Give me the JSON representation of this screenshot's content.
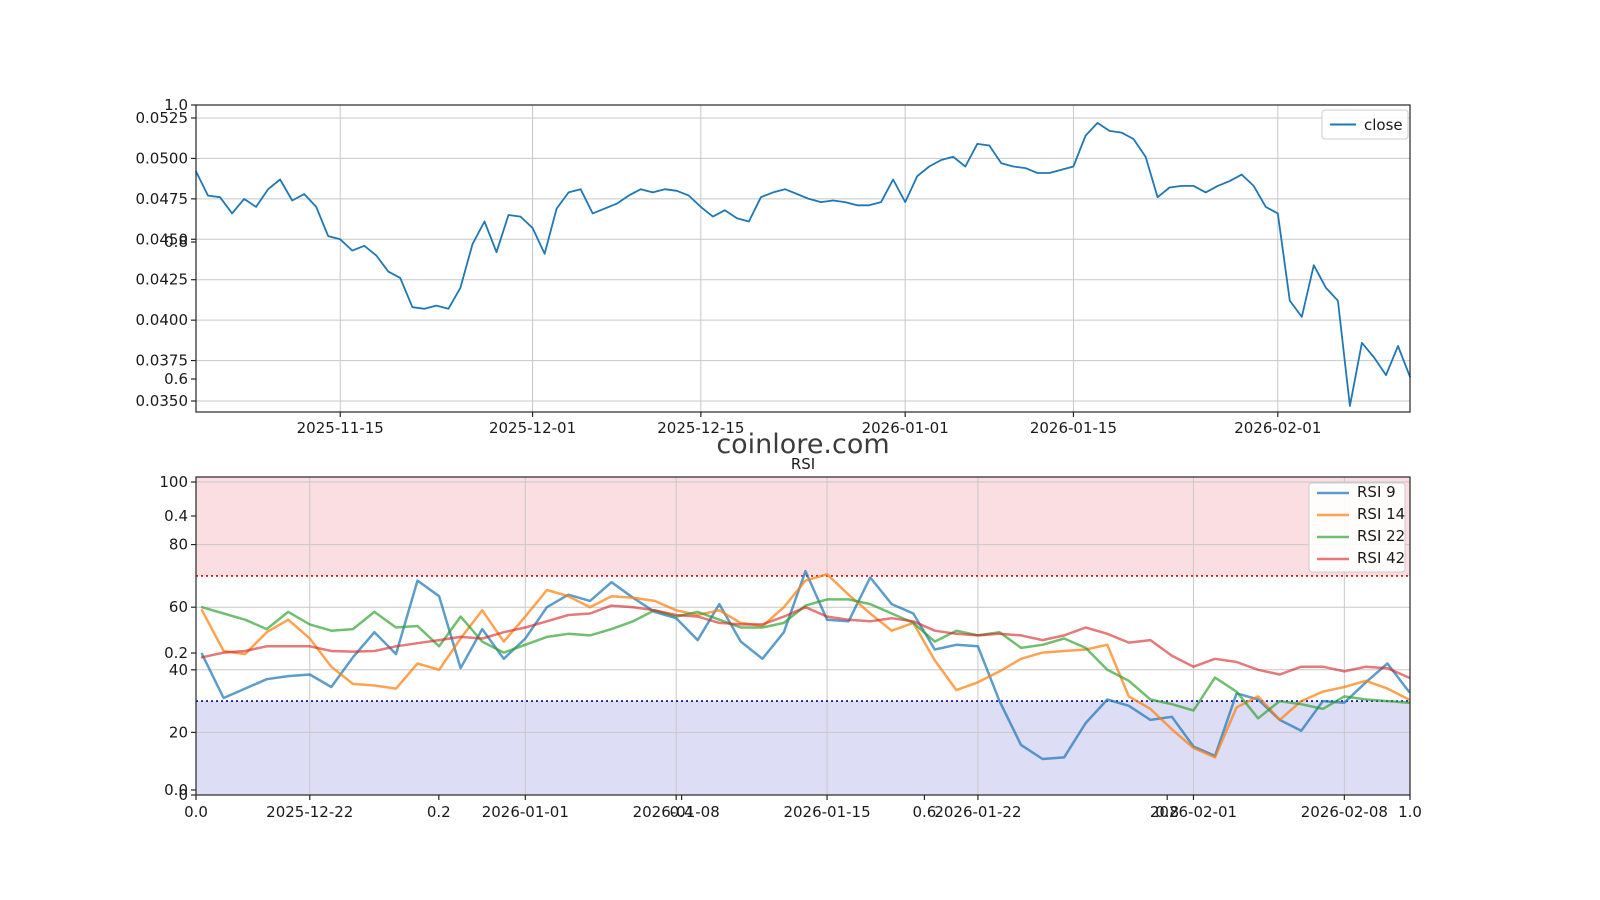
{
  "watermark": "coinlore.com",
  "outer_axis": {
    "y_ticks": [
      "1.0",
      "0.8",
      "0.6",
      "0.4",
      "0.2",
      "0.0"
    ],
    "x_ticks": [
      "0.0",
      "0.2",
      "0.4",
      "0.6",
      "0.8",
      "1.0"
    ]
  },
  "chart_data": [
    {
      "type": "line",
      "title": "",
      "legend_position": "upper right",
      "grid": true,
      "ylim": [
        0.0343,
        0.0533
      ],
      "y_ticks": [
        "0.0525",
        "0.0500",
        "0.0475",
        "0.0450",
        "0.0425",
        "0.0400",
        "0.0375",
        "0.0350"
      ],
      "x_start_date": "2025-11-03",
      "x_freq": "daily",
      "x_ticks": [
        {
          "label": "2025-11-15",
          "day": 12
        },
        {
          "label": "2025-12-01",
          "day": 28
        },
        {
          "label": "2025-12-15",
          "day": 42
        },
        {
          "label": "2026-01-01",
          "day": 59
        },
        {
          "label": "2026-01-15",
          "day": 73
        },
        {
          "label": "2026-02-01",
          "day": 90
        }
      ],
      "series": [
        {
          "name": "close",
          "color": "#1f77b4",
          "opacity": 1,
          "width": 1.8,
          "values": [
            0.0492,
            0.0477,
            0.0476,
            0.0466,
            0.0475,
            0.047,
            0.0481,
            0.0487,
            0.0474,
            0.0478,
            0.047,
            0.0452,
            0.045,
            0.0443,
            0.0446,
            0.044,
            0.043,
            0.0426,
            0.0408,
            0.0407,
            0.0409,
            0.0407,
            0.042,
            0.0447,
            0.0461,
            0.0442,
            0.0465,
            0.0464,
            0.0457,
            0.0441,
            0.0469,
            0.0479,
            0.0481,
            0.0466,
            0.0469,
            0.0472,
            0.0477,
            0.0481,
            0.0479,
            0.0481,
            0.048,
            0.0477,
            0.047,
            0.0464,
            0.0468,
            0.0463,
            0.0461,
            0.0476,
            0.0479,
            0.0481,
            0.0478,
            0.0475,
            0.0473,
            0.0474,
            0.0473,
            0.0471,
            0.0471,
            0.0473,
            0.0487,
            0.0473,
            0.0489,
            0.0495,
            0.0499,
            0.0501,
            0.0495,
            0.0509,
            0.0508,
            0.0497,
            0.0495,
            0.0494,
            0.0491,
            0.0491,
            0.0493,
            0.0495,
            0.0514,
            0.0522,
            0.0517,
            0.0516,
            0.0512,
            0.0501,
            0.0476,
            0.0482,
            0.0483,
            0.0483,
            0.0479,
            0.0483,
            0.0486,
            0.049,
            0.0483,
            0.047,
            0.0466,
            0.0412,
            0.0402,
            0.0434,
            0.042,
            0.0412,
            0.0347,
            0.0386,
            0.0377,
            0.0366,
            0.0384,
            0.0365
          ]
        }
      ]
    },
    {
      "type": "line",
      "title": "RSI",
      "legend_position": "upper right",
      "grid": true,
      "ylim": [
        0,
        100
      ],
      "y_ticks": [
        "100",
        "80",
        "60",
        "40",
        "20",
        "0"
      ],
      "overbought_line": 70,
      "oversold_line": 30,
      "overbought_color": "#dd0000",
      "oversold_color": "#0000aa",
      "bands": [
        {
          "from": 70,
          "to": 100,
          "color": "#fadee2"
        },
        {
          "from": 0,
          "to": 30,
          "color": "#deddf6"
        }
      ],
      "x_start_date": "2025-12-17",
      "x_freq": "daily",
      "x_ticks": [
        {
          "label": "2025-12-22",
          "day": 5
        },
        {
          "label": "2026-01-01",
          "day": 15
        },
        {
          "label": "2026-01-08",
          "day": 22
        },
        {
          "label": "2026-01-15",
          "day": 29
        },
        {
          "label": "2026-01-22",
          "day": 36
        },
        {
          "label": "2026-02-01",
          "day": 46
        },
        {
          "label": "2026-02-08",
          "day": 53
        }
      ],
      "series": [
        {
          "name": "RSI 9",
          "color": "#1f77b4",
          "opacity": 0.72,
          "width": 2.5,
          "values": [
            45,
            31,
            34,
            37,
            38,
            38.5,
            34.5,
            44,
            52,
            45,
            68.5,
            63.5,
            40.5,
            53,
            43.5,
            50,
            60,
            64,
            62,
            68,
            63,
            58.5,
            56.5,
            49.5,
            61,
            49,
            43.5,
            52,
            71.5,
            56,
            55.5,
            69.5,
            61,
            58,
            46.5,
            48,
            47.5,
            30,
            16,
            11.5,
            12,
            23,
            30.5,
            28.5,
            24,
            25,
            15.5,
            12.5,
            32.5,
            30.5,
            24,
            20.5,
            30,
            29.5,
            36,
            42,
            33
          ]
        },
        {
          "name": "RSI 14",
          "color": "#ff7f0e",
          "opacity": 0.72,
          "width": 2.5,
          "values": [
            59,
            46,
            45,
            52,
            56,
            50,
            41,
            35.5,
            35,
            34,
            42,
            40,
            50,
            59,
            49,
            57,
            65.5,
            63.5,
            60,
            63.5,
            63,
            62,
            59,
            57.5,
            59,
            55,
            54,
            60,
            68.5,
            70.5,
            64,
            58,
            52.5,
            55,
            43,
            33.5,
            36,
            39.5,
            43.5,
            45.5,
            46,
            46.5,
            48,
            31.5,
            27.5,
            21,
            15,
            12,
            28,
            31.5,
            24,
            30,
            33,
            34.5,
            36.5,
            34,
            30.5
          ]
        },
        {
          "name": "RSI 22",
          "color": "#2ca02c",
          "opacity": 0.68,
          "width": 2.5,
          "values": [
            60,
            58,
            56,
            53,
            58.5,
            54.5,
            52.5,
            53,
            58.5,
            53.5,
            54,
            47.5,
            57,
            49,
            45.5,
            48,
            50.5,
            51.5,
            51,
            53,
            55.5,
            59,
            57,
            58.5,
            56,
            53.5,
            53.5,
            55,
            60.5,
            62.5,
            62.5,
            61,
            58,
            55,
            49,
            52.5,
            51,
            52,
            47,
            48,
            50,
            47,
            40,
            36.5,
            30.5,
            29,
            27,
            37.5,
            33,
            24.5,
            30,
            29,
            27.5,
            31.5,
            30.5,
            30,
            29.5
          ]
        },
        {
          "name": "RSI 42",
          "color": "#d62728",
          "opacity": 0.62,
          "width": 2.5,
          "values": [
            44,
            45.5,
            46,
            47.5,
            47.5,
            47.5,
            46,
            45.8,
            46,
            47.5,
            48.5,
            49.5,
            50.5,
            50,
            52,
            53.5,
            55.5,
            57.5,
            58,
            60.5,
            60,
            59,
            57.5,
            57,
            55,
            54.5,
            54.5,
            57,
            60,
            57,
            56,
            55.5,
            56.5,
            55.5,
            52.5,
            51.5,
            51,
            51.5,
            51,
            49.5,
            51,
            53.5,
            51.5,
            48.7,
            49.5,
            44.5,
            41,
            43.5,
            42.5,
            40,
            38.5,
            41,
            41,
            39.5,
            41,
            40.5,
            37.5
          ]
        }
      ]
    }
  ]
}
